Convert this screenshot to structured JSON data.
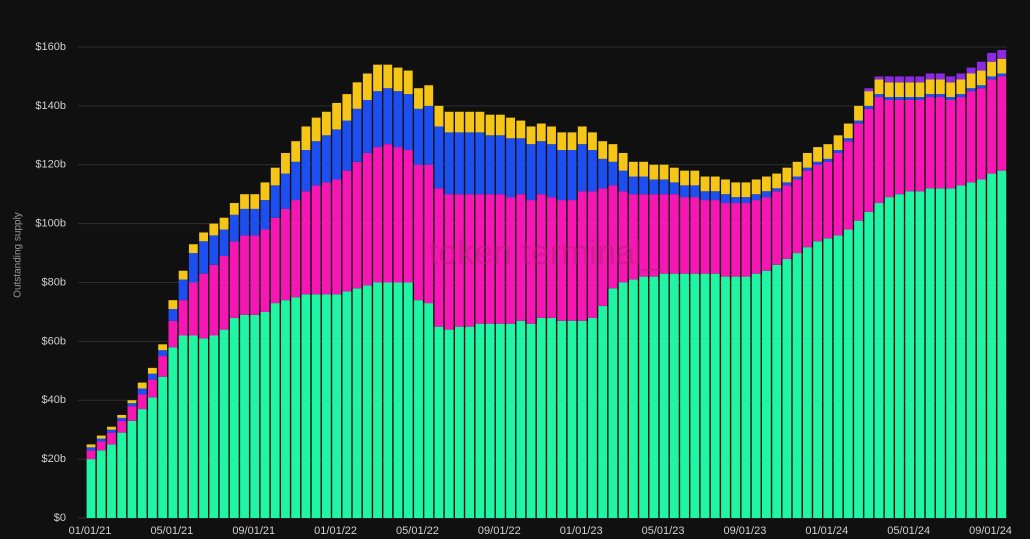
{
  "chart_data": {
    "type": "stacked_bar",
    "watermark": "token terminal_",
    "ylabel": "Outstanding supply",
    "ylim": [
      0,
      160
    ],
    "yticks": [
      {
        "value": 0,
        "label": "$0"
      },
      {
        "value": 20,
        "label": "$20b"
      },
      {
        "value": 40,
        "label": "$40b"
      },
      {
        "value": 60,
        "label": "$60b"
      },
      {
        "value": 80,
        "label": "$80b"
      },
      {
        "value": 100,
        "label": "$100b"
      },
      {
        "value": 120,
        "label": "$120b"
      },
      {
        "value": 140,
        "label": "$140b"
      },
      {
        "value": 160,
        "label": "$160b"
      }
    ],
    "grid": true,
    "categories": [
      "01/01/21",
      null,
      null,
      null,
      null,
      null,
      null,
      null,
      "05/01/21",
      null,
      null,
      null,
      null,
      null,
      null,
      null,
      "09/01/21",
      null,
      null,
      null,
      null,
      null,
      null,
      null,
      "01/01/22",
      null,
      null,
      null,
      null,
      null,
      null,
      null,
      "05/01/22",
      null,
      null,
      null,
      null,
      null,
      null,
      null,
      "09/01/22",
      null,
      null,
      null,
      null,
      null,
      null,
      null,
      "01/01/23",
      null,
      null,
      null,
      null,
      null,
      null,
      null,
      "05/01/23",
      null,
      null,
      null,
      null,
      null,
      null,
      null,
      "09/01/23",
      null,
      null,
      null,
      null,
      null,
      null,
      null,
      "01/01/24",
      null,
      null,
      null,
      null,
      null,
      null,
      null,
      "05/01/24",
      null,
      null,
      null,
      null,
      null,
      null,
      null,
      "09/01/24",
      null
    ],
    "series": [
      {
        "color": "#1ff5a3",
        "values": [
          20,
          23,
          25,
          29,
          33,
          37,
          41,
          48,
          58,
          62,
          62,
          61,
          62,
          64,
          68,
          69,
          69,
          70,
          73,
          74,
          75,
          76,
          76,
          76,
          76,
          77,
          78,
          79,
          80,
          80,
          80,
          80,
          74,
          73,
          65,
          64,
          65,
          65,
          66,
          66,
          66,
          66,
          67,
          66,
          68,
          68,
          67,
          67,
          67,
          68,
          72,
          78,
          80,
          81,
          82,
          82,
          83,
          83,
          83,
          83,
          83,
          83,
          82,
          82,
          82,
          83,
          84,
          86,
          88,
          90,
          92,
          94,
          95,
          96,
          98,
          101,
          104,
          107,
          109,
          110,
          111,
          111,
          112,
          112,
          112,
          113,
          114,
          115,
          117,
          118
        ]
      },
      {
        "color": "#f516b4",
        "values": [
          3,
          3,
          4,
          4,
          5,
          5,
          6,
          7,
          9,
          12,
          18,
          22,
          24,
          25,
          26,
          27,
          27,
          28,
          29,
          31,
          33,
          35,
          37,
          38,
          39,
          41,
          43,
          45,
          46,
          47,
          46,
          45,
          46,
          47,
          47,
          46,
          45,
          45,
          44,
          44,
          44,
          43,
          43,
          42,
          42,
          41,
          41,
          41,
          44,
          43,
          40,
          35,
          31,
          29,
          28,
          28,
          27,
          27,
          26,
          26,
          25,
          25,
          25,
          25,
          25,
          25,
          25,
          25,
          25,
          25,
          26,
          26,
          26,
          28,
          30,
          33,
          35,
          36,
          33,
          32,
          31,
          31,
          31,
          31,
          30,
          30,
          31,
          31,
          32,
          32
        ]
      },
      {
        "color": "#1d4ff0",
        "values": [
          1,
          1,
          1,
          1,
          1,
          2,
          2,
          2,
          4,
          7,
          10,
          11,
          10,
          9,
          9,
          9,
          9,
          10,
          11,
          12,
          13,
          14,
          15,
          16,
          17,
          17,
          18,
          18,
          19,
          19,
          19,
          19,
          19,
          20,
          21,
          21,
          21,
          21,
          21,
          20,
          20,
          20,
          19,
          19,
          18,
          18,
          17,
          17,
          16,
          14,
          10,
          8,
          7,
          6,
          6,
          5,
          5,
          4,
          4,
          4,
          3,
          3,
          3,
          2,
          2,
          2,
          2,
          1,
          1,
          1,
          1,
          1,
          1,
          1,
          1,
          1,
          1,
          1,
          1,
          1,
          1,
          1,
          1,
          1,
          1,
          1,
          1,
          1,
          1,
          1
        ]
      },
      {
        "color": "#f5c518",
        "values": [
          1,
          1,
          1,
          1,
          1,
          2,
          2,
          2,
          3,
          3,
          3,
          3,
          4,
          4,
          4,
          5,
          5,
          6,
          6,
          7,
          7,
          8,
          8,
          8,
          9,
          9,
          9,
          9,
          9,
          8,
          8,
          8,
          7,
          7,
          7,
          7,
          7,
          7,
          7,
          7,
          7,
          7,
          6,
          6,
          6,
          6,
          6,
          6,
          6,
          6,
          6,
          6,
          6,
          5,
          5,
          5,
          5,
          5,
          5,
          5,
          5,
          5,
          5,
          5,
          5,
          5,
          5,
          5,
          5,
          5,
          5,
          5,
          5,
          5,
          5,
          5,
          5,
          5,
          5,
          5,
          5,
          5,
          5,
          5,
          5,
          5,
          5,
          5,
          5,
          5
        ]
      },
      {
        "color": "#8a2be2",
        "values": [
          0,
          0,
          0,
          0,
          0,
          0,
          0,
          0,
          0,
          0,
          0,
          0,
          0,
          0,
          0,
          0,
          0,
          0,
          0,
          0,
          0,
          0,
          0,
          0,
          0,
          0,
          0,
          0,
          0,
          0,
          0,
          0,
          0,
          0,
          0,
          0,
          0,
          0,
          0,
          0,
          0,
          0,
          0,
          0,
          0,
          0,
          0,
          0,
          0,
          0,
          0,
          0,
          0,
          0,
          0,
          0,
          0,
          0,
          0,
          0,
          0,
          0,
          0,
          0,
          0,
          0,
          0,
          0,
          0,
          0,
          0,
          0,
          0,
          0,
          0,
          0,
          1,
          1,
          2,
          2,
          2,
          2,
          2,
          2,
          2,
          2,
          2,
          3,
          3,
          3
        ]
      }
    ]
  }
}
